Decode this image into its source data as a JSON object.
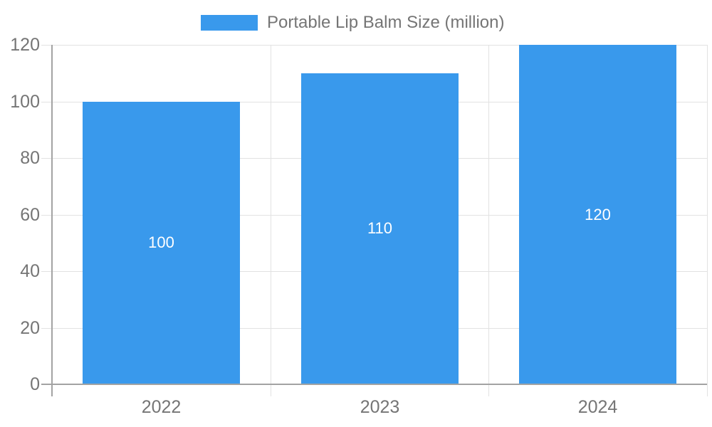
{
  "legend": {
    "label": "Portable Lip Balm Size (million)",
    "swatch_color": "#3999ec"
  },
  "chart_data": {
    "type": "bar",
    "title": "",
    "xlabel": "",
    "ylabel": "",
    "categories": [
      "2022",
      "2023",
      "2024"
    ],
    "series": [
      {
        "name": "Portable Lip Balm Size (million)",
        "values": [
          100,
          110,
          120
        ]
      }
    ],
    "bar_labels": [
      "100",
      "110",
      "120"
    ],
    "yticks": [
      0,
      20,
      40,
      60,
      80,
      100,
      120
    ],
    "ytick_labels": [
      "0",
      "20",
      "40",
      "60",
      "80",
      "100",
      "120"
    ],
    "ylim": [
      0,
      120
    ],
    "grid": true,
    "legend_position": "top"
  },
  "colors": {
    "bar": "#3999ec",
    "data_label": "#ffffff",
    "grid": "#e2e2e2",
    "axis": "#a3a3a3",
    "tick_label": "#757575",
    "legend_text": "#757575"
  }
}
